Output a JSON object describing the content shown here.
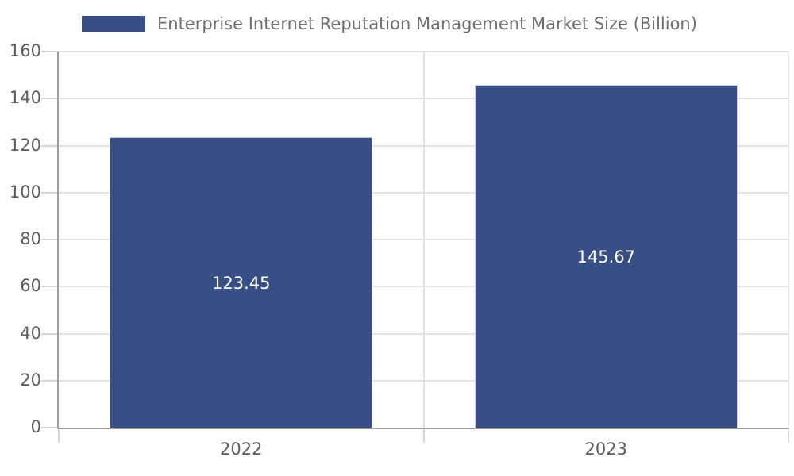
{
  "legend": {
    "label": "Enterprise Internet Reputation Management Market Size (Billion)",
    "swatch_color": "#374e87"
  },
  "chart_data": {
    "type": "bar",
    "title": "Enterprise Internet Reputation Management Market Size (Billion)",
    "categories": [
      "2022",
      "2023"
    ],
    "values": [
      123.45,
      145.67
    ],
    "value_labels": [
      "123.45",
      "145.67"
    ],
    "xlabel": "",
    "ylabel": "",
    "ylim": [
      0,
      160
    ],
    "yticks": [
      0,
      20,
      40,
      60,
      80,
      100,
      120,
      140,
      160
    ],
    "grid": true,
    "grid_boundaries_vertical": true,
    "legend_position": "top-left",
    "colors": {
      "bar": "#374e87",
      "bar_border": "#c9cde0",
      "bar_label": "#ffffff",
      "axis": "#9d9d9d",
      "grid": "#e3e3e3",
      "tick": "#d4d4d8",
      "axis_text": "#5c5c5c"
    }
  }
}
